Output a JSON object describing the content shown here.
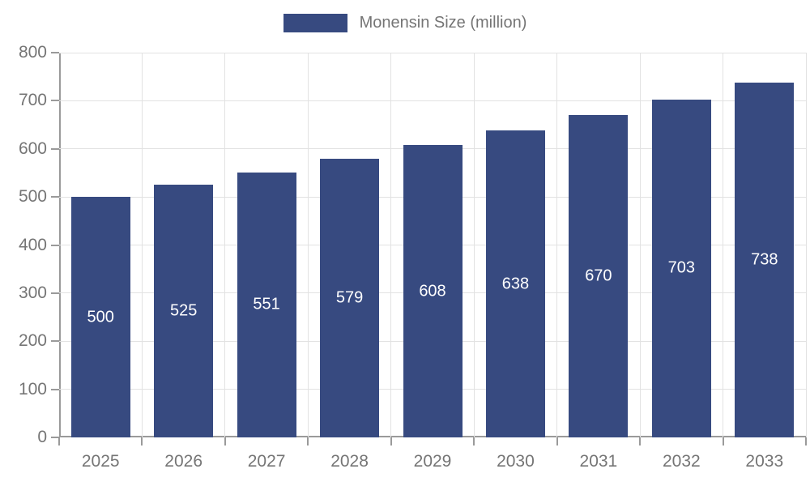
{
  "chart_data": {
    "type": "bar",
    "title": "",
    "legend": "Monensin Size (million)",
    "legend_position": "top",
    "categories": [
      "2025",
      "2026",
      "2027",
      "2028",
      "2029",
      "2030",
      "2031",
      "2032",
      "2033"
    ],
    "series": [
      {
        "name": "Monensin Size (million)",
        "values": [
          500,
          525,
          551,
          579,
          608,
          638,
          670,
          703,
          738
        ]
      }
    ],
    "bar_value_labels": [
      "500",
      "525",
      "551",
      "579",
      "608",
      "638",
      "670",
      "703",
      "738"
    ],
    "xlabel": "",
    "ylabel": "",
    "ylim": [
      0,
      800
    ],
    "ytick_interval": 100,
    "ytick_labels": [
      "0",
      "100",
      "200",
      "300",
      "400",
      "500",
      "600",
      "700",
      "800"
    ],
    "grid": "horizontal and vertical gridlines on",
    "colors": {
      "bar": "#374A80",
      "bar_label_text": "#ffffff",
      "axis": "#9a9a9a",
      "gridline": "#e2e2e2",
      "tick_text": "#757575",
      "legend_text": "#757575",
      "background": "#ffffff"
    }
  }
}
